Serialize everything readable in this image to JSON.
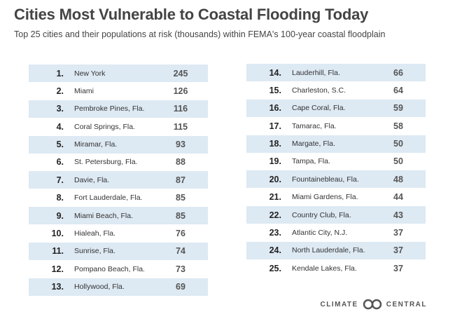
{
  "title": "Cities Most Vulnerable to Coastal Flooding Today",
  "subtitle": "Top 25 cities and their populations at risk (thousands) within FEMA's 100-year coastal floodplain",
  "cities": [
    {
      "rank": "1.",
      "name": "New York",
      "pop": "245"
    },
    {
      "rank": "2.",
      "name": "Miami",
      "pop": "126"
    },
    {
      "rank": "3.",
      "name": "Pembroke Pines, Fla.",
      "pop": "116"
    },
    {
      "rank": "4.",
      "name": "Coral Springs, Fla.",
      "pop": "115"
    },
    {
      "rank": "5.",
      "name": "Miramar, Fla.",
      "pop": "93"
    },
    {
      "rank": "6.",
      "name": "St. Petersburg, Fla.",
      "pop": "88"
    },
    {
      "rank": "7.",
      "name": "Davie, Fla.",
      "pop": "87"
    },
    {
      "rank": "8.",
      "name": "Fort Lauderdale, Fla.",
      "pop": "85"
    },
    {
      "rank": "9.",
      "name": "Miami Beach, Fla.",
      "pop": "85"
    },
    {
      "rank": "10.",
      "name": "Hialeah, Fla.",
      "pop": "76"
    },
    {
      "rank": "11.",
      "name": "Sunrise, Fla.",
      "pop": "74"
    },
    {
      "rank": "12.",
      "name": "Pompano Beach, Fla.",
      "pop": "73"
    },
    {
      "rank": "13.",
      "name": "Hollywood, Fla.",
      "pop": "69"
    },
    {
      "rank": "14.",
      "name": "Lauderhill, Fla.",
      "pop": "66"
    },
    {
      "rank": "15.",
      "name": "Charleston, S.C.",
      "pop": "64"
    },
    {
      "rank": "16.",
      "name": "Cape Coral, Fla.",
      "pop": "59"
    },
    {
      "rank": "17.",
      "name": "Tamarac, Fla.",
      "pop": "58"
    },
    {
      "rank": "18.",
      "name": "Margate, Fla.",
      "pop": "50"
    },
    {
      "rank": "19.",
      "name": "Tampa, Fla.",
      "pop": "50"
    },
    {
      "rank": "20.",
      "name": "Fountainebleau, Fla.",
      "pop": "48"
    },
    {
      "rank": "21.",
      "name": "Miami Gardens, Fla.",
      "pop": "44"
    },
    {
      "rank": "22.",
      "name": "Country Club, Fla.",
      "pop": "43"
    },
    {
      "rank": "23.",
      "name": "Atlantic City, N.J.",
      "pop": "37"
    },
    {
      "rank": "24.",
      "name": "North Lauderdale, Fla.",
      "pop": "37"
    },
    {
      "rank": "25.",
      "name": "Kendale Lakes, Fla.",
      "pop": "37"
    }
  ],
  "logo": {
    "left_text": "CLIMATE",
    "right_text": "CENTRAL"
  },
  "colors": {
    "row_shade": "#dde9f3",
    "text": "#333333"
  }
}
